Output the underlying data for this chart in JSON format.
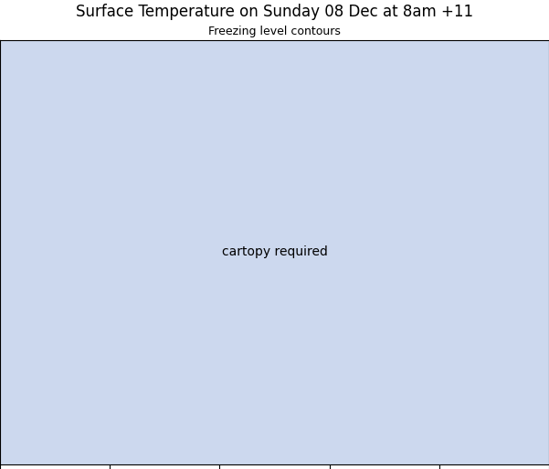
{
  "title": "Surface Temperature on Sunday 08 Dec at 8am +11",
  "subtitle": "Freezing level contours",
  "title_fontsize": 12,
  "subtitle_fontsize": 9,
  "ocean_color": "#ccd8ee",
  "contour_color": "#ff0000",
  "fig_width": 6.01,
  "fig_height": 5.14,
  "dpi": 100,
  "lon_min": 130,
  "lon_max": 170,
  "lat_min": -20,
  "lat_max": 5,
  "grid_lons": [
    130,
    135,
    140,
    145,
    150,
    155,
    160,
    165,
    170
  ],
  "grid_lats": [
    -20,
    -15,
    -10,
    -5,
    0,
    5
  ],
  "land_base_color": "#c85000",
  "land_mid_color": "#dd7700",
  "land_high_color": "#eebb00",
  "land_peak_color": "#eeee44"
}
